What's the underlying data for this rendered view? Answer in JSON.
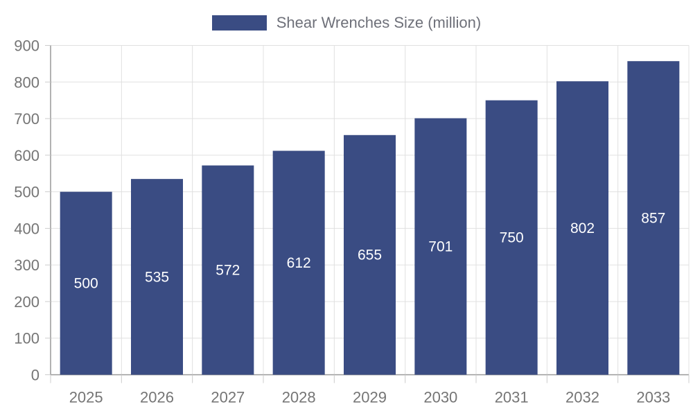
{
  "chart_data": {
    "type": "bar",
    "title": "Shear Wrenches Size (million)",
    "categories": [
      "2025",
      "2026",
      "2027",
      "2028",
      "2029",
      "2030",
      "2031",
      "2032",
      "2033"
    ],
    "values": [
      500,
      535,
      572,
      612,
      655,
      701,
      750,
      802,
      857
    ],
    "series_name": "Shear Wrenches Size (million)",
    "xlabel": "",
    "ylabel": "",
    "ylim": [
      0,
      900
    ],
    "ytick_interval": 100,
    "ytick_labels": [
      "0",
      "100",
      "200",
      "300",
      "400",
      "500",
      "600",
      "700",
      "800",
      "900"
    ],
    "grid": true,
    "legend_position": "top",
    "value_labels_shown": true,
    "colors": {
      "bar": "#3a4c83",
      "axis_label": "#757575",
      "legend_text": "#6e7079",
      "gridline": "#e0e0e0",
      "axis_line": "#999999",
      "tick_mark": "#cccccc",
      "value_label": "#ffffff",
      "background": "#ffffff"
    }
  }
}
